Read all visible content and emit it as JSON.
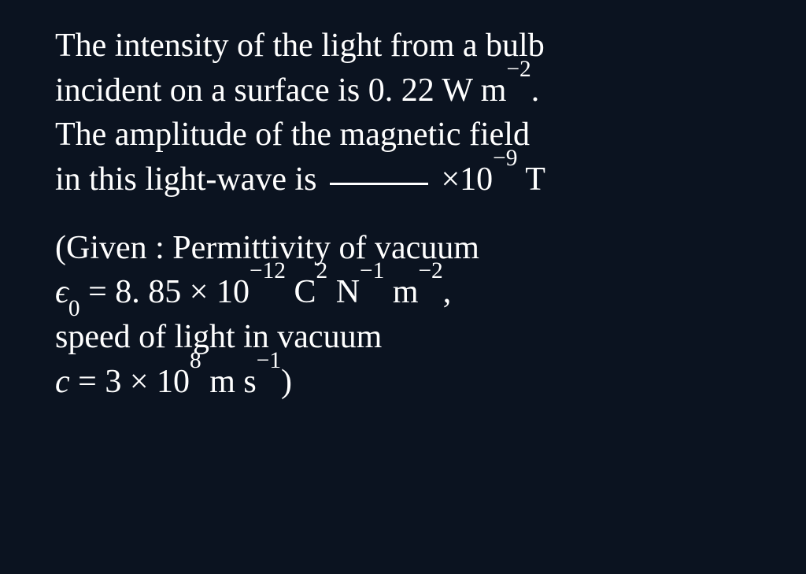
{
  "background_color": "#0b1320",
  "text_color": "#ffffff",
  "font_family": "Georgia, serif",
  "font_size_pt": 32,
  "para1": {
    "l1": "The intensity of the light from a bulb",
    "l2_a": "incident on a surface is ",
    "l2_val": "0. 22 W m",
    "l2_exp": "−2",
    "l2_b": ".",
    "l3": "The amplitude of the magnetic field",
    "l4_a": "in this light-wave is ",
    "l4_mult": " ×10",
    "l4_exp": "−9",
    "l4_unit": " T"
  },
  "para2": {
    "l1": "(Given : Permittivity of vacuum",
    "eps_symbol": "ϵ",
    "eps_sub": "0",
    "eps_eq": " = 8. 85 × 10",
    "eps_exp": "−12",
    "eps_c2": " C",
    "eps_c2_exp": "2",
    "eps_n": " N",
    "eps_n_exp": "−1",
    "eps_m": " m",
    "eps_m_exp": "−2",
    "eps_comma": ",",
    "l3": "speed of light in vacuum",
    "c_symbol": "c",
    "c_eq": " = 3 × 10",
    "c_exp": "8",
    "c_unit_m": " m s",
    "c_unit_exp": "−1",
    "c_close": ")"
  }
}
